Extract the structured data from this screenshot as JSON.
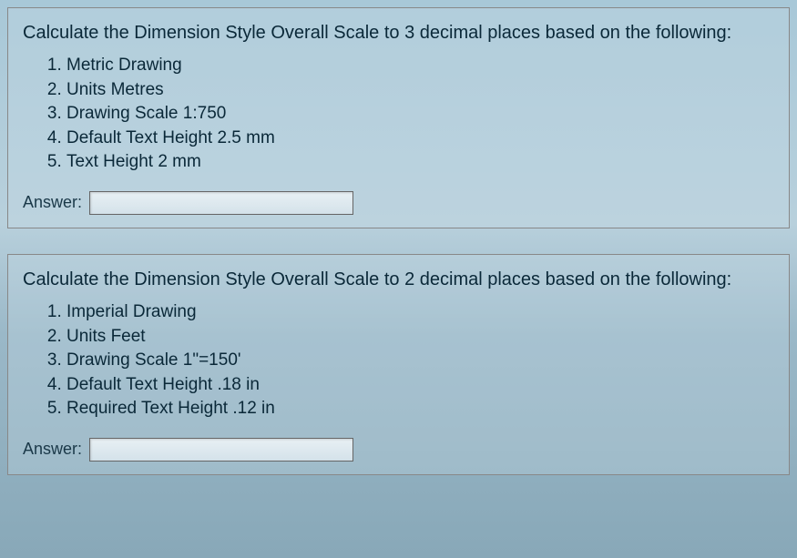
{
  "questions": [
    {
      "title": "Calculate the Dimension Style Overall Scale to 3 decimal places based on the following:",
      "params": [
        "Metric Drawing",
        "Units Metres",
        "Drawing Scale 1:750",
        "Default Text Height 2.5 mm",
        "Text Height 2 mm"
      ],
      "answer_label": "Answer:",
      "answer_value": "",
      "has_cursor": true
    },
    {
      "title": "Calculate the Dimension Style Overall Scale to 2 decimal places based on the following:",
      "params": [
        "Imperial Drawing",
        "Units Feet",
        "Drawing Scale 1\"=150'",
        "Default Text Height .18 in",
        "Required Text Height .12 in"
      ],
      "answer_label": "Answer:",
      "answer_value": "",
      "has_cursor": false
    }
  ],
  "colors": {
    "text_primary": "#0a2838",
    "background_top": "#a8c8d8",
    "background_bottom": "#88a8b8",
    "border": "#888888",
    "input_bg": "#e0ecf2"
  }
}
